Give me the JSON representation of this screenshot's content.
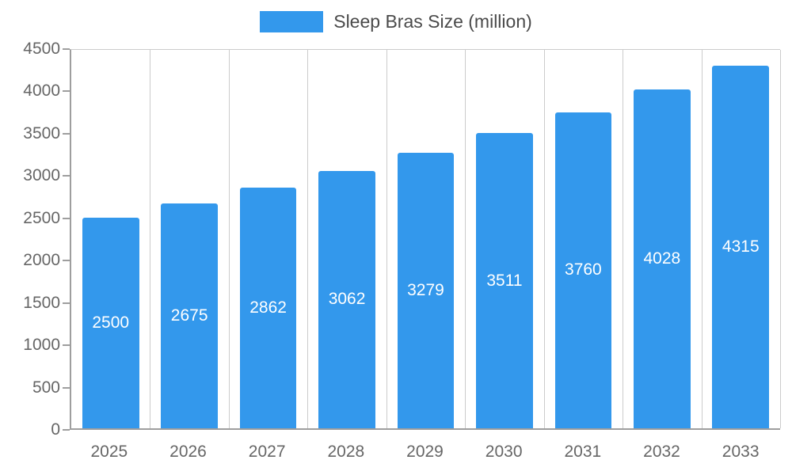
{
  "chart_data": {
    "type": "bar",
    "title": "Sleep Bras Size (million)",
    "legend": "Sleep Bras Size (million)",
    "categories": [
      "2025",
      "2026",
      "2027",
      "2028",
      "2029",
      "2030",
      "2031",
      "2032",
      "2033"
    ],
    "values": [
      2500,
      2675,
      2862,
      3062,
      3279,
      3511,
      3760,
      4028,
      4315
    ],
    "xlabel": "",
    "ylabel": "",
    "ylim": [
      0,
      4500
    ],
    "ytick_step": 500,
    "grid": "vertical-gridlines",
    "legend_position": "top-center",
    "bar_label_position": "center-inside",
    "colors": {
      "bar": "#3398EC",
      "grid": "#cccccc",
      "axis": "#9e9e9e",
      "tick_text": "#666666",
      "bar_label": "#ffffff",
      "legend_text": "#4a4a4a",
      "background": "#ffffff"
    }
  }
}
